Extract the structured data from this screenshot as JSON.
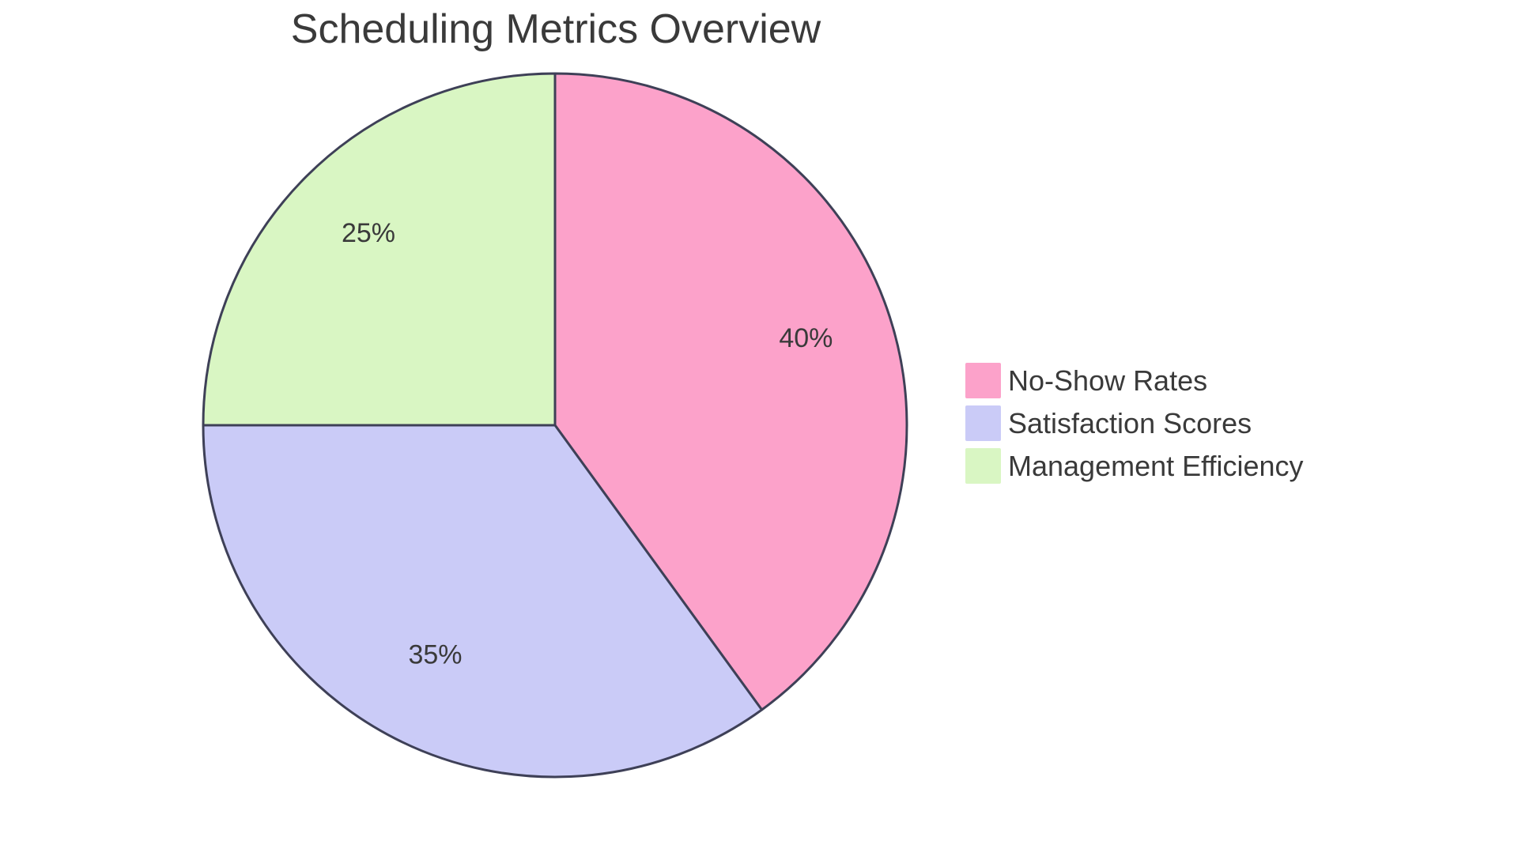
{
  "chart_data": {
    "type": "pie",
    "title": "Scheduling Metrics Overview",
    "slices": [
      {
        "label": "No-Show Rates",
        "value": 40,
        "percent_label": "40%",
        "color": "#FCA2CA"
      },
      {
        "label": "Satisfaction Scores",
        "value": 35,
        "percent_label": "35%",
        "color": "#CACBF7"
      },
      {
        "label": "Management Efficiency",
        "value": 25,
        "percent_label": "25%",
        "color": "#D9F6C3"
      }
    ],
    "start_angle_deg": 0,
    "direction": "clockwise",
    "stroke_color": "#3E4057",
    "stroke_width": 3,
    "label_color": "#3A3A3A",
    "legend_position": "right"
  }
}
